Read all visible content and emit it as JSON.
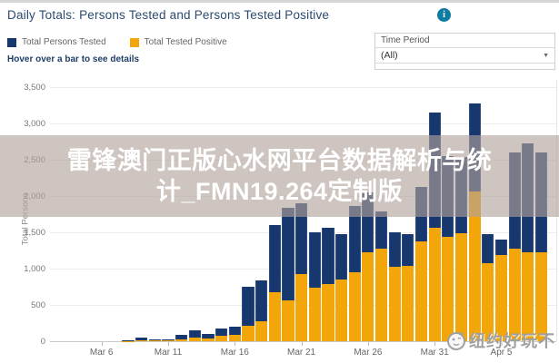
{
  "header": {
    "title": "Daily Totals: Persons Tested and Persons Tested Positive",
    "info_icon_glyph": "i"
  },
  "legend": [
    {
      "label": "Total Persons Tested",
      "color": "#17386e"
    },
    {
      "label": "Total Tested Positive",
      "color": "#f2a60a"
    }
  ],
  "hover_hint": "Hover over a bar to see details",
  "time_period": {
    "label": "Time Period",
    "selected": "(All)",
    "caret_glyph": "▼"
  },
  "overlay_banner": {
    "line1": "雷锋澳门正版心水网平台数据解析与统",
    "line2": "计_FMN19.264定制版"
  },
  "watermark": {
    "text": "纽约好玩不",
    "logo": "face-logo-icon"
  },
  "colors": {
    "bar_tested": "#17386e",
    "bar_positive": "#f2a60a",
    "overlay_bg": "rgba(177,162,155,0.63)",
    "info_icon": "#0d7ca3",
    "title_text": "#2d4a70"
  },
  "chart_data": {
    "type": "bar",
    "stacked": true,
    "title": "Daily Totals: Persons Tested and Persons Tested Positive",
    "xlabel": "",
    "ylabel": "Total Persons",
    "ylim": [
      0,
      3500
    ],
    "ytick_step": 500,
    "yticks": [
      "0",
      "500",
      "1,000",
      "1,500",
      "2,000",
      "2,500",
      "3,000",
      "3,500"
    ],
    "xticks": [
      "Mar 6",
      "Mar 11",
      "Mar 16",
      "Mar 21",
      "Mar 26",
      "Mar 31",
      "Apr 5"
    ],
    "grid": "horizontal",
    "legend_position": "top-left",
    "categories": [
      "Mar 8",
      "Mar 9",
      "Mar 10",
      "Mar 11",
      "Mar 12",
      "Mar 13",
      "Mar 14",
      "Mar 15",
      "Mar 16",
      "Mar 17",
      "Mar 18",
      "Mar 19",
      "Mar 20",
      "Mar 21",
      "Mar 22",
      "Mar 23",
      "Mar 24",
      "Mar 25",
      "Mar 26",
      "Mar 27",
      "Mar 28",
      "Mar 29",
      "Mar 30",
      "Mar 31",
      "Apr 1",
      "Apr 2",
      "Apr 3",
      "Apr 4",
      "Apr 5",
      "Apr 6",
      "Apr 7",
      "Apr 8"
    ],
    "series": [
      {
        "name": "Total Persons Tested",
        "color": "#17386e",
        "values": [
          15,
          45,
          30,
          25,
          85,
          145,
          95,
          170,
          195,
          755,
          835,
          1595,
          1835,
          1905,
          1505,
          1565,
          1480,
          1860,
          2050,
          1790,
          1500,
          1480,
          2130,
          3150,
          2550,
          2540,
          3280,
          1480,
          1395,
          2600,
          2725,
          2600
        ]
      },
      {
        "name": "Total Tested Positive",
        "color": "#f2a60a",
        "values": [
          4,
          12,
          10,
          8,
          30,
          55,
          40,
          70,
          85,
          210,
          275,
          675,
          565,
          930,
          740,
          790,
          855,
          950,
          1220,
          1270,
          1020,
          1040,
          1375,
          1560,
          1440,
          1490,
          2060,
          1080,
          1190,
          1270,
          1225,
          1225
        ]
      }
    ]
  }
}
